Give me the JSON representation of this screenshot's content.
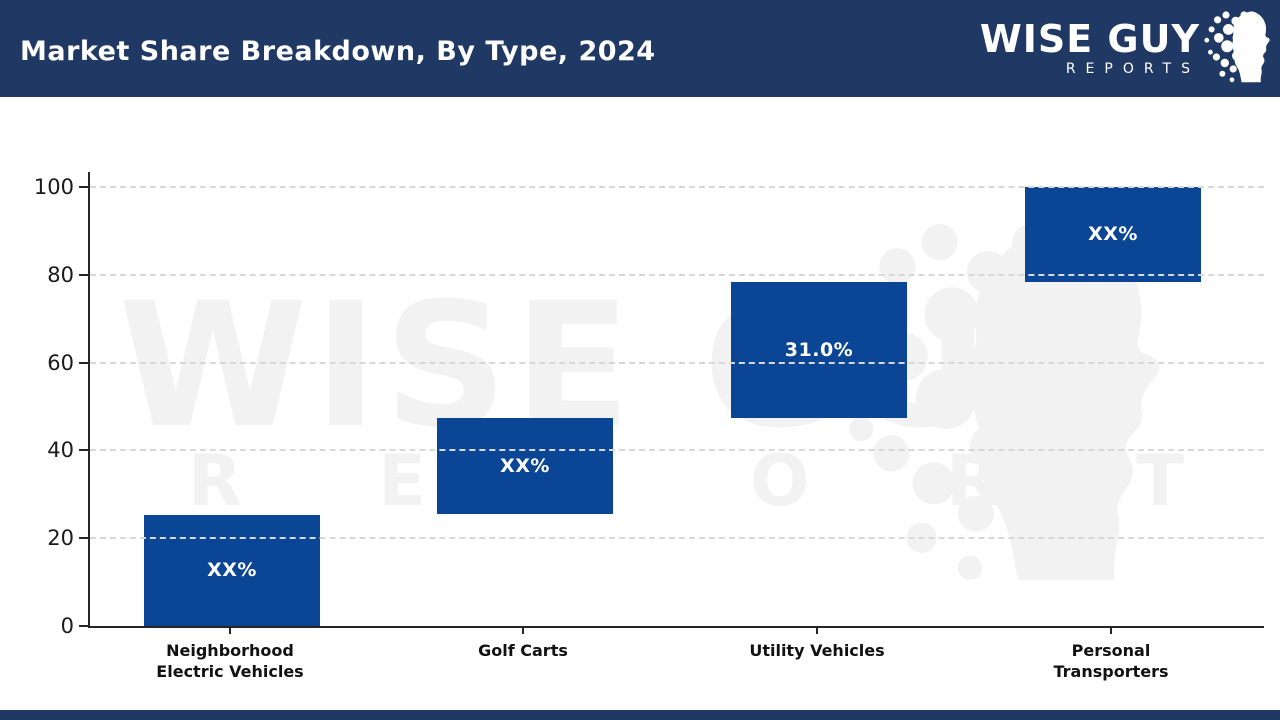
{
  "header": {
    "title": "Market Share Breakdown, By Type, 2024",
    "logo": {
      "line1": "WISE GUY",
      "line2": "REPORTS"
    }
  },
  "watermark": {
    "line1": "WISE GUY",
    "line2": "R E P O R T S"
  },
  "colors": {
    "header_bg": "#1f3864",
    "bar": "#0b4596",
    "grid": "#d8d8d8",
    "axis": "#262626",
    "watermark": "#f2f2f2",
    "logo": "#ffffff"
  },
  "chart_data": {
    "type": "bar",
    "subtype": "waterfall",
    "title": "Market Share Breakdown, By Type, 2024",
    "unit": "%",
    "categories": [
      "Neighborhood Electric Vehicles",
      "Golf Carts",
      "Utility Vehicles",
      "Personal Transporters"
    ],
    "category_lines": [
      [
        "Neighborhood",
        "Electric Vehicles"
      ],
      [
        "Golf Carts"
      ],
      [
        "Utility Vehicles"
      ],
      [
        "Personal",
        "Transporters"
      ]
    ],
    "segments": [
      {
        "start": 0,
        "end": 25.3,
        "label": "XX%"
      },
      {
        "start": 25.5,
        "end": 47.4,
        "label": "XX%"
      },
      {
        "start": 47.4,
        "end": 78.4,
        "label": "31.0%"
      },
      {
        "start": 78.4,
        "end": 100,
        "label": "XX%"
      }
    ],
    "ylim": [
      0,
      100
    ],
    "yticks": [
      0,
      20,
      40,
      60,
      80,
      100
    ],
    "grid": "horizontal dashed, drawn over bars",
    "legend": "none"
  }
}
